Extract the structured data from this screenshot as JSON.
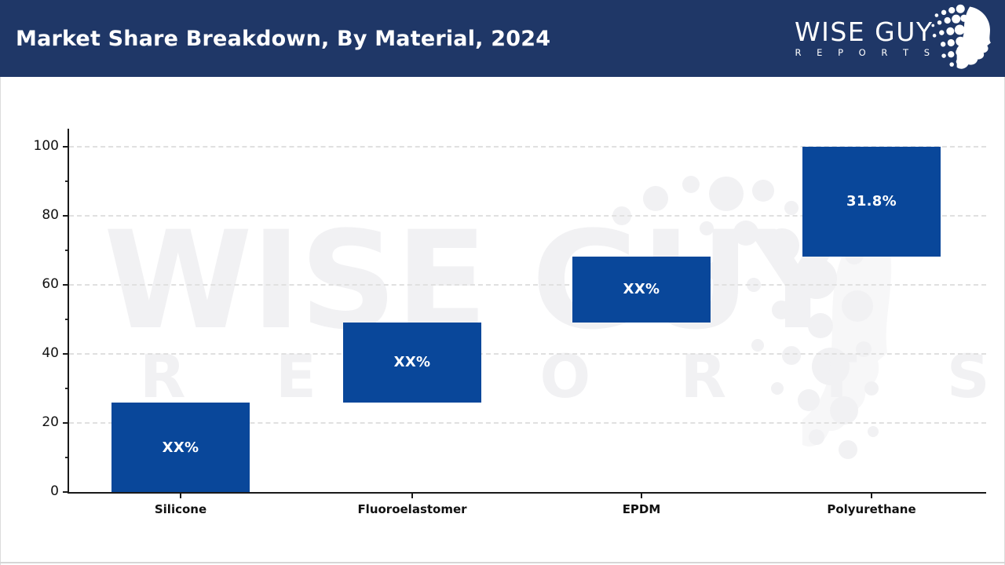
{
  "header": {
    "title": "Market Share Breakdown, By Material, 2024",
    "logo": {
      "line1": "WISE GUY",
      "line2": "R E P O R T S"
    }
  },
  "watermark": {
    "line1": "WISE GUY",
    "line2": "R E P O R T S"
  },
  "colors": {
    "header_bg": "#1f3767",
    "bar": "#09479a",
    "grid": "#e0e0e0",
    "watermark": "#f1f1f3"
  },
  "chart_data": {
    "type": "bar",
    "subtype": "waterfall",
    "title": "Market Share Breakdown, By Material, 2024",
    "categories": [
      "Silicone",
      "Fluoroelastomer",
      "EPDM",
      "Polyurethane"
    ],
    "segments": [
      {
        "category": "Silicone",
        "start": 0,
        "end": 25.9,
        "label": "XX%"
      },
      {
        "category": "Fluoroelastomer",
        "start": 25.9,
        "end": 49.1,
        "label": "XX%"
      },
      {
        "category": "EPDM",
        "start": 49.1,
        "end": 68.2,
        "label": "XX%"
      },
      {
        "category": "Polyurethane",
        "start": 68.2,
        "end": 100,
        "label": "31.8%"
      }
    ],
    "ylim": [
      0,
      100
    ],
    "yticks": [
      0,
      20,
      40,
      60,
      80,
      100
    ],
    "minor_yticks": [
      10,
      30,
      50,
      70,
      90
    ],
    "grid": "dashed-horizontal",
    "legend": null,
    "xlabel": "",
    "ylabel": ""
  }
}
